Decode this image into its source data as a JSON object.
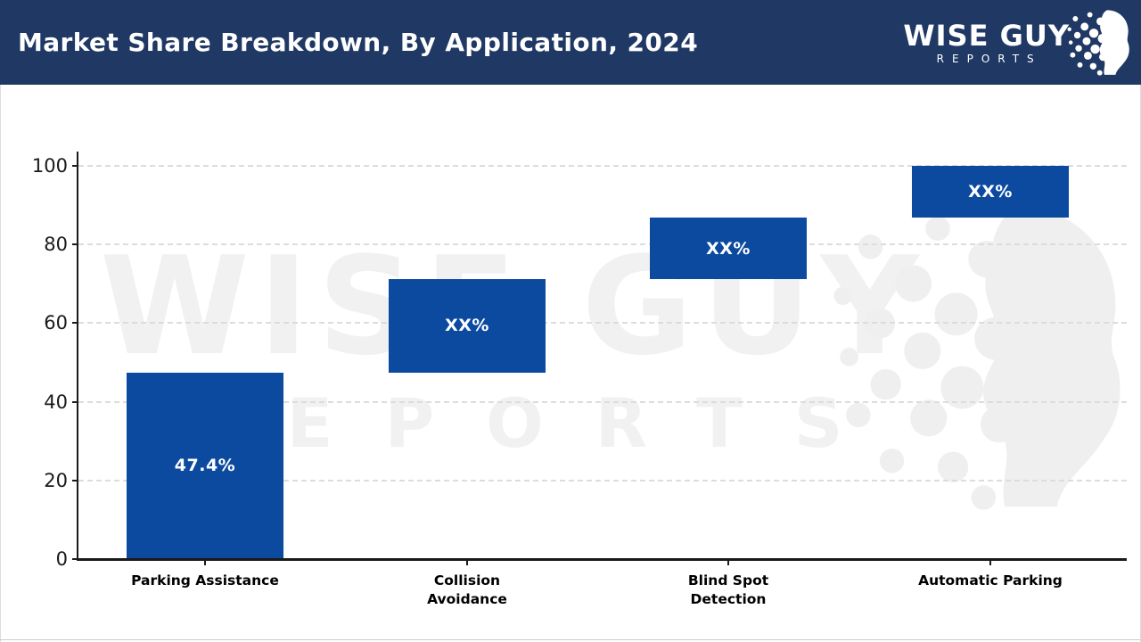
{
  "header": {
    "title": "Market Share Breakdown, By Application, 2024",
    "bg_color": "#1f3864",
    "logo": {
      "line1": "WISE GUY",
      "line2": "REPORTS"
    }
  },
  "watermark": {
    "line1": "WISE GUY",
    "line2": "REPORTS"
  },
  "chart_data": {
    "type": "bar",
    "subtype": "waterfall",
    "title": "Market Share Breakdown, By Application, 2024",
    "categories": [
      "Parking Assistance",
      "Collision\nAvoidance",
      "Blind Spot\nDetection",
      "Automatic Parking"
    ],
    "segments": [
      {
        "category": "Parking Assistance",
        "start": 0,
        "end": 47.4,
        "label": "47.4%"
      },
      {
        "category": "Collision Avoidance",
        "start": 47.4,
        "end": 71.2,
        "label": "XX%"
      },
      {
        "category": "Blind Spot Detection",
        "start": 71.2,
        "end": 86.8,
        "label": "XX%"
      },
      {
        "category": "Automatic Parking",
        "start": 86.8,
        "end": 100,
        "label": "XX%"
      }
    ],
    "ylim": [
      0,
      100
    ],
    "yticks": [
      0,
      20,
      40,
      60,
      80,
      100
    ],
    "xlabel": "",
    "ylabel": "",
    "bar_color": "#0b4a9f",
    "grid": "horizontal-dashed",
    "legend": "none"
  }
}
